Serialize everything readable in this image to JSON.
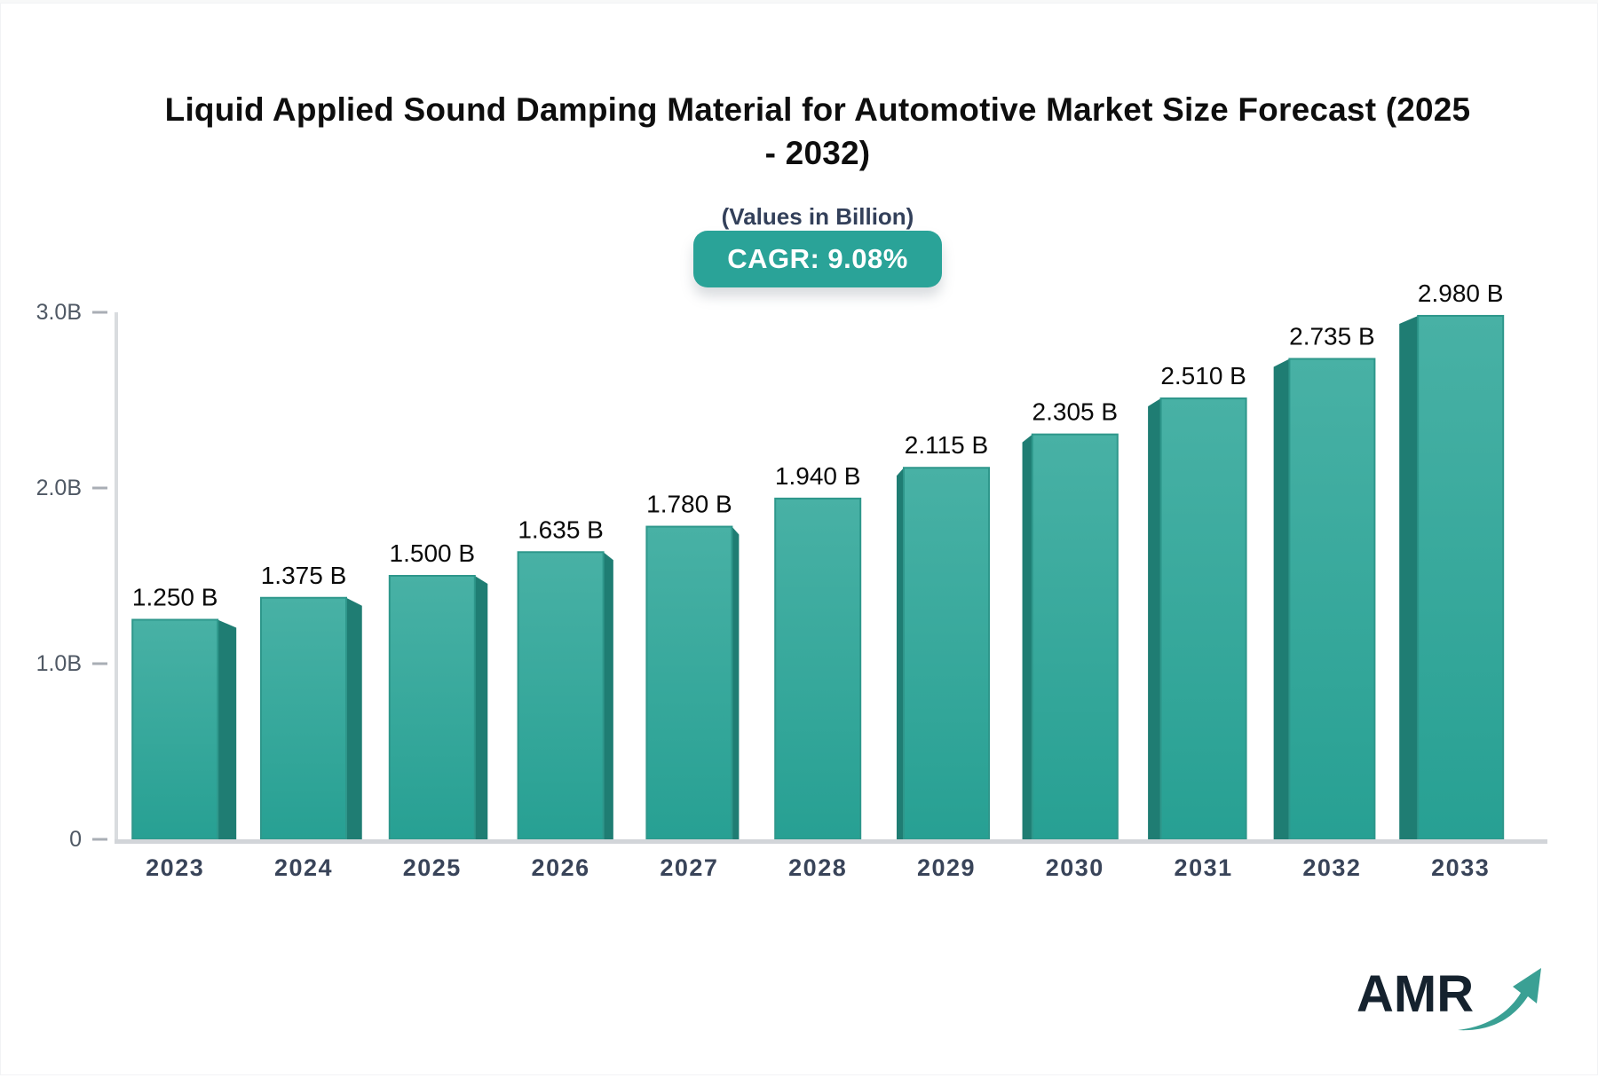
{
  "page": {
    "title_line1": "Liquid Applied Sound Damping Material for Automotive Market Size Forecast (2025",
    "title_line2": "- 2032)",
    "subtitle": "(Values in Billion)",
    "cagr_label": "CAGR: 9.08%",
    "logo_text": "AMR"
  },
  "colors": {
    "badge_bg": "#2aa398",
    "bar_face_top": "#48b1a5",
    "bar_face_bottom": "#27a093",
    "bar_stroke": "#2e978b",
    "bar_side": "#1f7d73",
    "axis_line": "#d9dcdf",
    "baseline": "#d2d5d9",
    "tick_mark": "#a9aeb5",
    "tick_text": "#4f5864",
    "year_text": "#394459",
    "value_text": "#0a0a0a",
    "logo_arrow": "#3aa094",
    "title_text": "#0e0e0e",
    "subtitle_text": "#33405a"
  },
  "chart_data": {
    "type": "bar",
    "title": "Liquid Applied Sound Damping Material for Automotive Market Size Forecast (2025 - 2032)",
    "subtitle": "(Values in Billion)",
    "cagr": "9.08%",
    "categories": [
      "2023",
      "2024",
      "2025",
      "2026",
      "2027",
      "2028",
      "2029",
      "2030",
      "2031",
      "2032",
      "2033"
    ],
    "values": [
      1.25,
      1.375,
      1.5,
      1.635,
      1.78,
      1.94,
      2.115,
      2.305,
      2.51,
      2.735,
      2.98
    ],
    "value_labels": [
      "1.250 B",
      "1.375 B",
      "1.500 B",
      "1.635 B",
      "1.780 B",
      "1.940 B",
      "2.115 B",
      "2.305 B",
      "2.510 B",
      "2.735 B",
      "2.980 B"
    ],
    "xlabel": "",
    "ylabel": "",
    "ylim": [
      0,
      3.0
    ],
    "ytick_values": [
      0,
      1,
      2,
      3
    ],
    "ytick_labels": [
      "0",
      "1.0B",
      "2.0B",
      "3.0B"
    ],
    "grid": "off",
    "legend": "none",
    "style": "3d-perspective-bars"
  }
}
